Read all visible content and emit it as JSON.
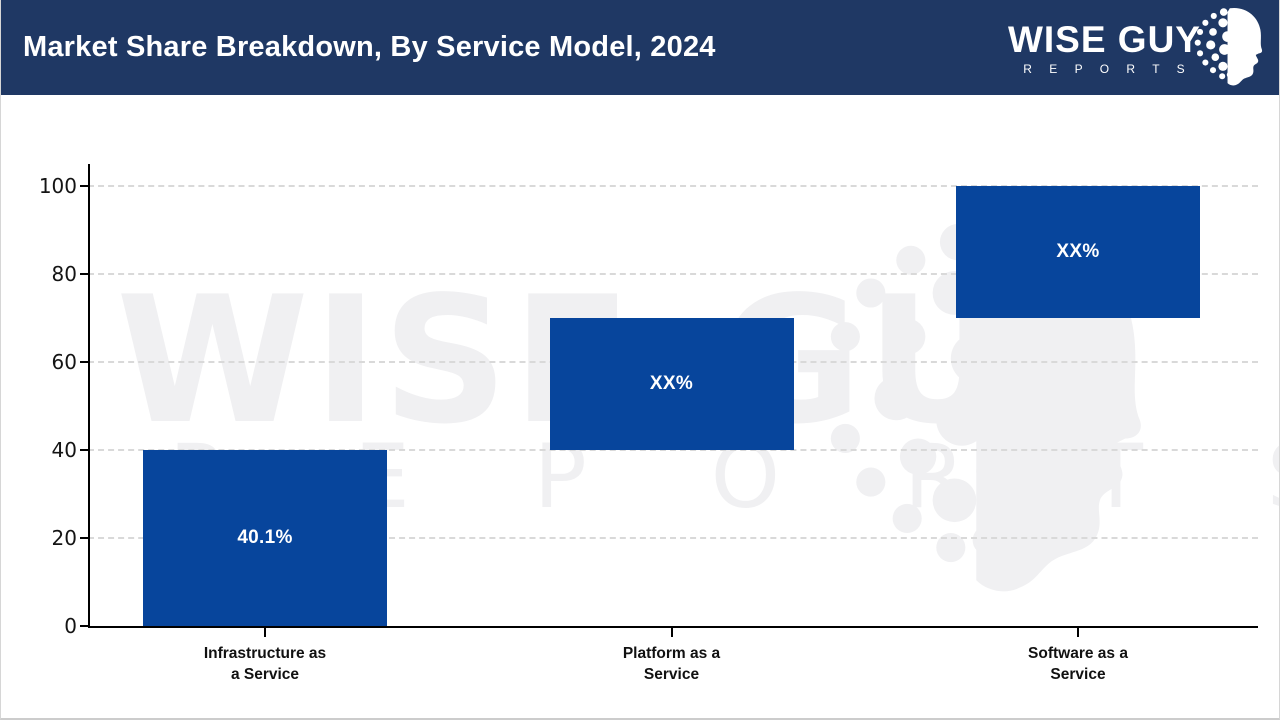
{
  "header": {
    "title": "Market Share Breakdown, By Service Model, 2024",
    "logo": {
      "line1": "WISE GUY",
      "line2": "R E P O R T S"
    }
  },
  "watermark": {
    "line1": "WISE GUY",
    "line2": "R E P O R T S"
  },
  "colors": {
    "header_bg": "#1f3864",
    "bar": "#07459c",
    "bar_label": "#ffffff",
    "grid": "#d9d9d9",
    "axis": "#000000",
    "watermark": "#f0f0f2"
  },
  "chart_data": {
    "type": "bar",
    "variant": "floating-waterfall",
    "title": "Market Share Breakdown, By Service Model, 2024",
    "categories": [
      "Infrastructure as\na Service",
      "Platform as a\nService",
      "Software as a\nService"
    ],
    "segments": [
      {
        "category": "Infrastructure as a Service",
        "start": 0,
        "end": 40,
        "label": "40.1%"
      },
      {
        "category": "Platform as a Service",
        "start": 40,
        "end": 70,
        "label": "XX%"
      },
      {
        "category": "Software as a Service",
        "start": 70,
        "end": 100,
        "label": "XX%"
      }
    ],
    "yticks": [
      0,
      20,
      40,
      60,
      80,
      100
    ],
    "ylim": [
      0,
      105
    ],
    "xlabel": "",
    "ylabel": "",
    "grid": "horizontal-dashed",
    "legend_position": "none"
  }
}
